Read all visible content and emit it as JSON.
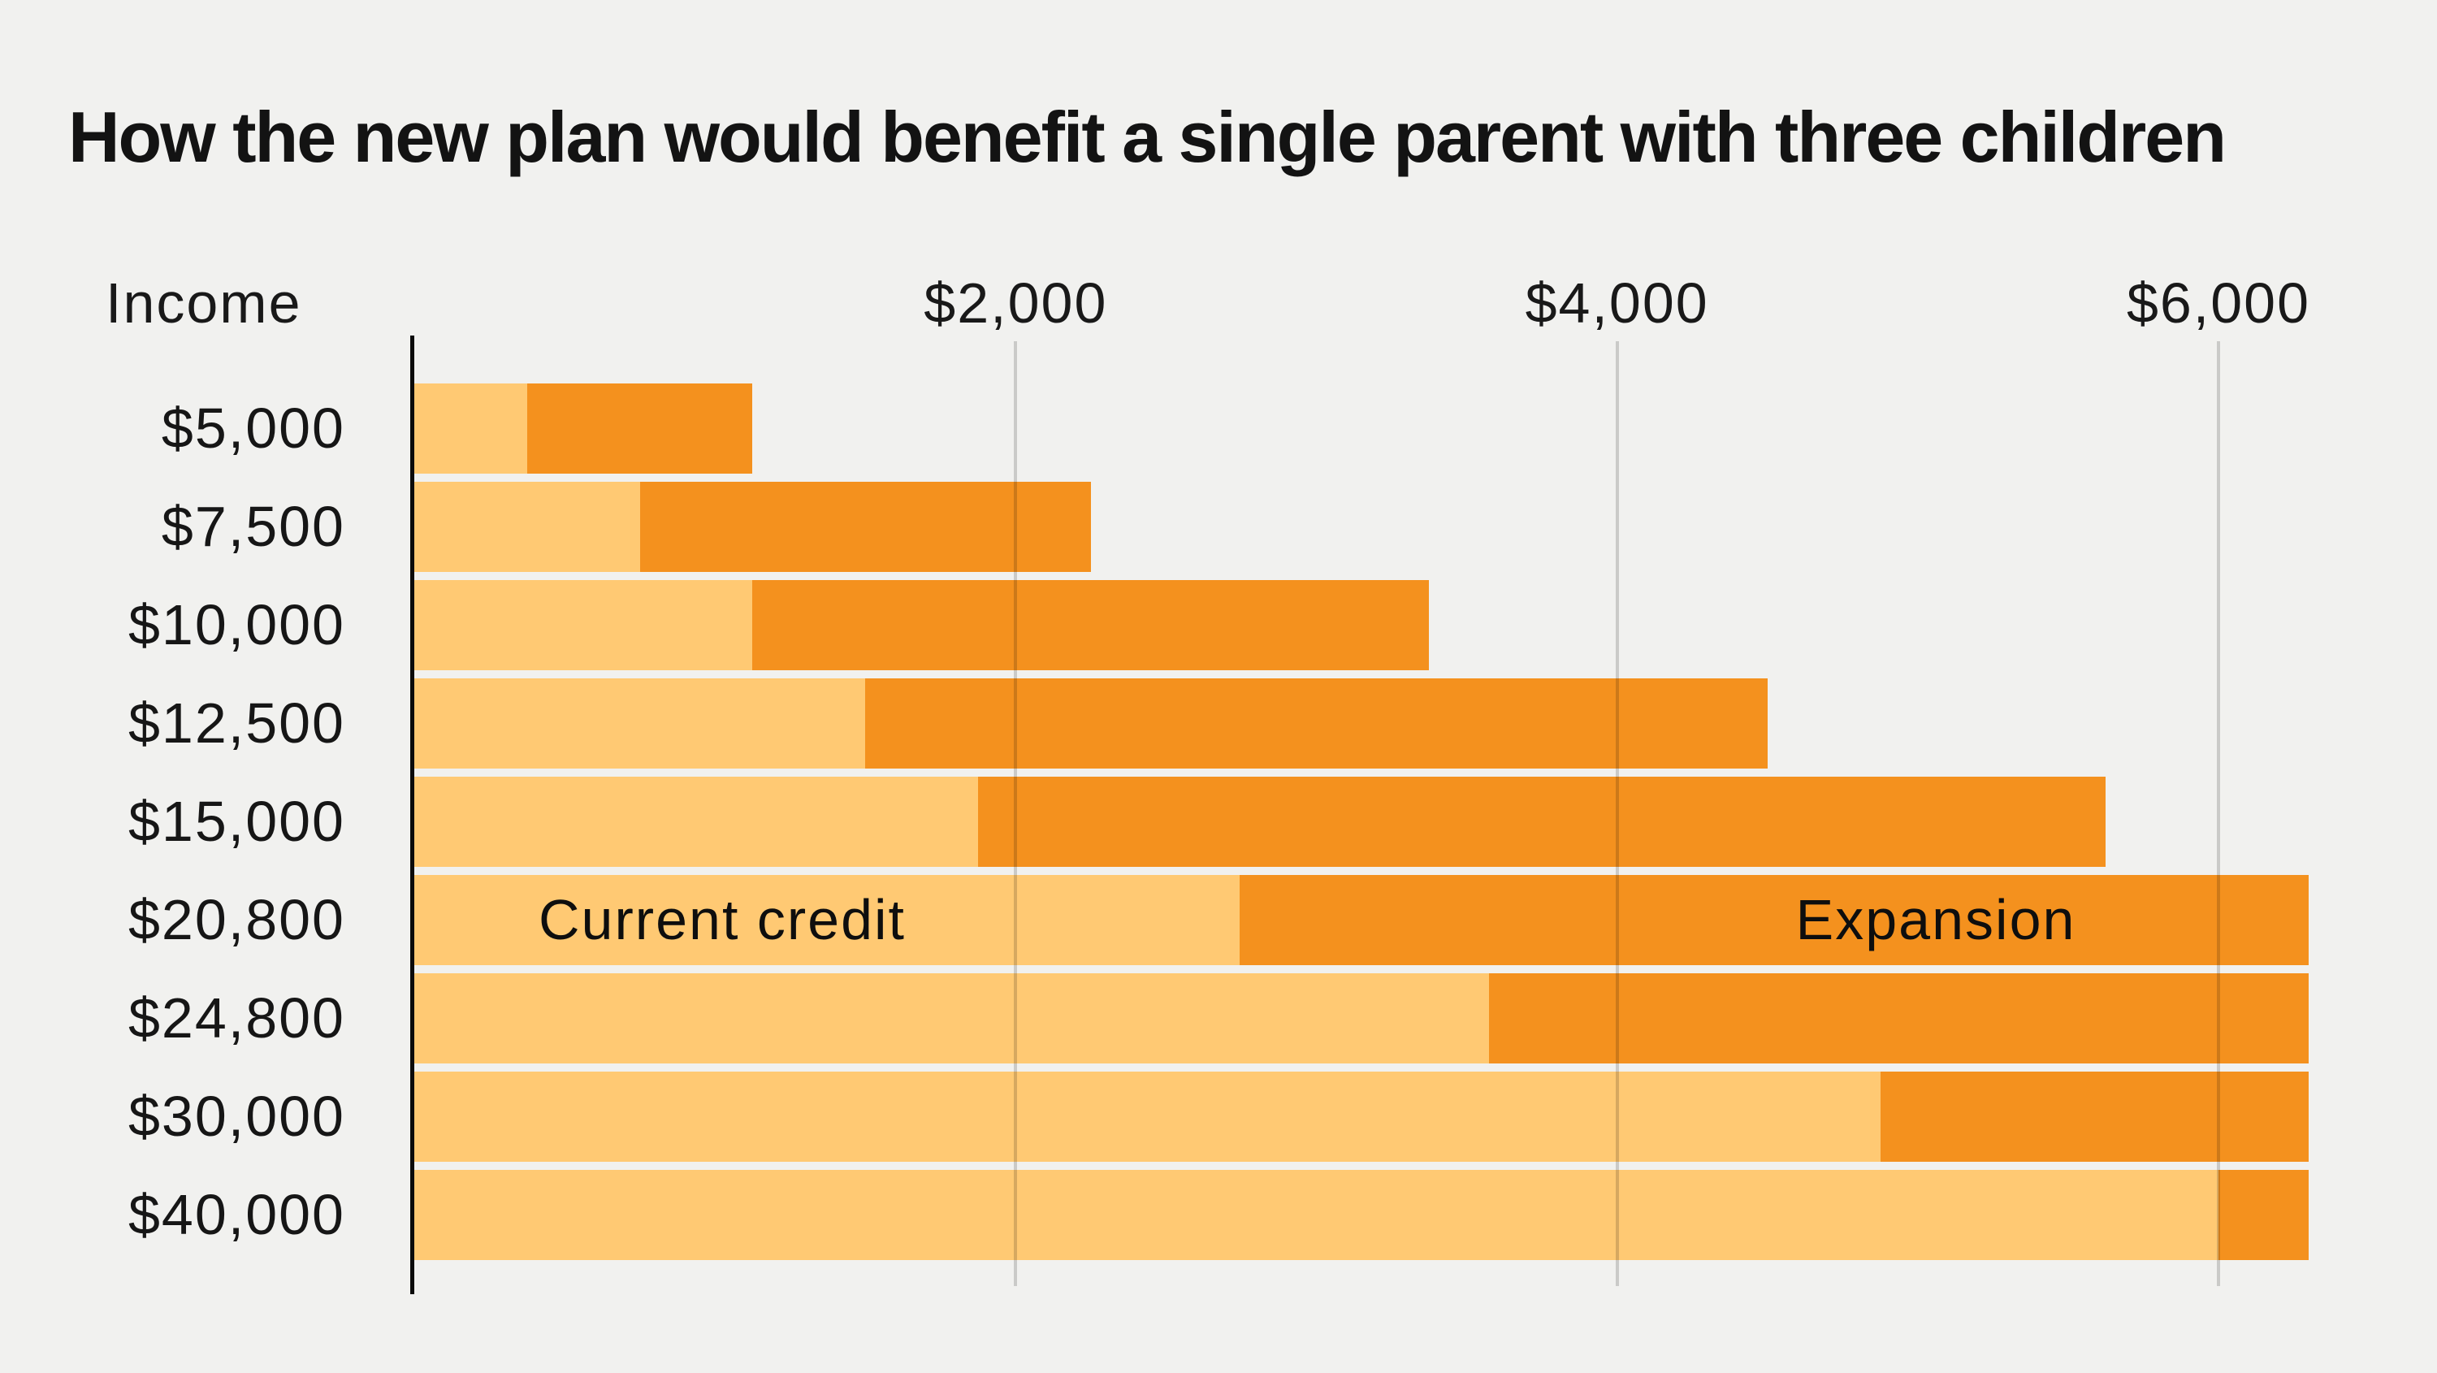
{
  "title": "How the new plan would benefit a single parent with three children",
  "income_header": "Income",
  "colors": {
    "current_credit": "#FFC973",
    "expansion": "#F4911E",
    "background": "#F1F1EF",
    "axis_line": "#0B0B0B",
    "gridline": "rgba(0,0,0,0.16)",
    "text": "#161616"
  },
  "chart_data": {
    "type": "bar",
    "orientation": "horizontal",
    "stacked": true,
    "title": "How the new plan would benefit a single parent with three children",
    "category_axis_label": "Income",
    "categories": [
      "$5,000",
      "$7,500",
      "$10,000",
      "$12,500",
      "$15,000",
      "$20,800",
      "$24,800",
      "$30,000",
      "$40,000"
    ],
    "series": [
      {
        "name": "Current credit",
        "values": [
          375,
          750,
          1125,
          1500,
          1875,
          2745,
          3575,
          4875,
          6000
        ]
      },
      {
        "name": "Expansion",
        "values": [
          750,
          1500,
          2250,
          3000,
          3750,
          3555,
          2725,
          1425,
          300
        ]
      }
    ],
    "totals_under_new_plan": [
      1125,
      2250,
      3375,
      4500,
      5625,
      6300,
      6300,
      6300,
      6300
    ],
    "x_ticks": [
      {
        "label": "$2,000",
        "value": 2000
      },
      {
        "label": "$4,000",
        "value": 4000
      },
      {
        "label": "$6,000",
        "value": 6000
      }
    ],
    "xlim": [
      0,
      6300
    ],
    "grid": "vertical gridlines drawn over bars",
    "legend_position": "in-bar annotations on $20,800 row",
    "annotations": [
      {
        "text": "Current credit",
        "series": "Current credit",
        "row": "$20,800"
      },
      {
        "text": "Expansion",
        "series": "Expansion",
        "row": "$20,800"
      }
    ]
  }
}
